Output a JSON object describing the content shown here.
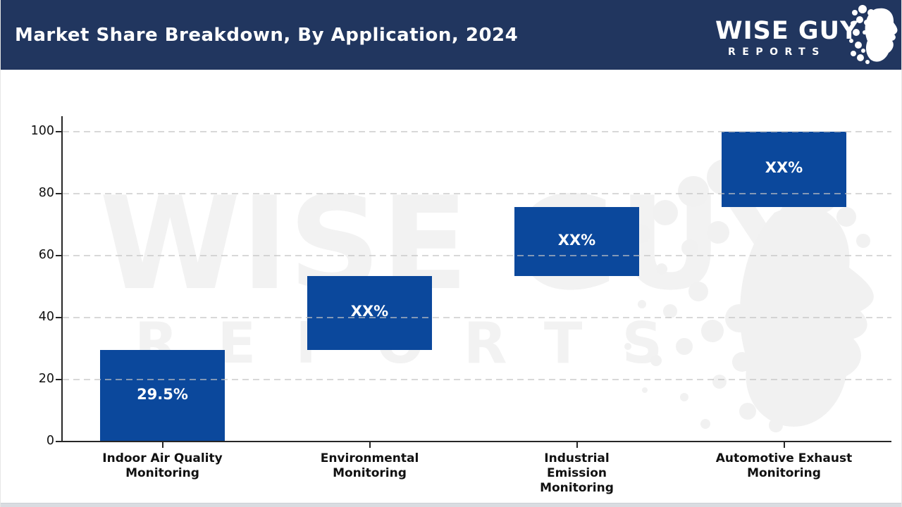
{
  "header": {
    "title": "Market Share Breakdown, By Application, 2024",
    "logo": {
      "brand": "WISE GUY",
      "reports": "REPORTS"
    }
  },
  "watermark": {
    "brand": "WISE GUY",
    "reports": "REPORTS"
  },
  "chart_data": {
    "type": "bar",
    "subtype": "waterfall",
    "title": "Market Share Breakdown, By Application, 2024",
    "categories": [
      "Indoor Air Quality Monitoring",
      "Environmental Monitoring",
      "Industrial Emission Monitoring",
      "Automotive Exhaust Monitoring"
    ],
    "category_label_lines": [
      [
        "Indoor Air Quality",
        "Monitoring"
      ],
      [
        "Environmental",
        "Monitoring"
      ],
      [
        "Industrial",
        "Emission",
        "Monitoring"
      ],
      [
        "Automotive Exhaust",
        "Monitoring"
      ]
    ],
    "segments": [
      {
        "category": "Indoor Air Quality Monitoring",
        "start": 0,
        "end": 29.5,
        "label": "29.5%"
      },
      {
        "category": "Environmental Monitoring",
        "start": 29.5,
        "end": 53.4,
        "label": "XX%"
      },
      {
        "category": "Industrial Emission Monitoring",
        "start": 53.4,
        "end": 75.7,
        "label": "XX%"
      },
      {
        "category": "Automotive Exhaust Monitoring",
        "start": 75.7,
        "end": 100,
        "label": "XX%"
      }
    ],
    "xlabel": "",
    "ylabel": "",
    "ylim": [
      0,
      100
    ],
    "yticks": [
      0,
      20,
      40,
      60,
      80,
      100
    ],
    "grid": "dashed horizontal, drawn over bars",
    "legend": "none",
    "bar_color": "#0b489c",
    "value_label_color": "#ffffff"
  },
  "colors": {
    "header_bg": "#21365f",
    "bar_blue": "#0b489c",
    "axis": "#262626",
    "grid": "#d7d7d7",
    "watermark": "#f2f2f2",
    "footer_strip": "#d9dce1"
  }
}
